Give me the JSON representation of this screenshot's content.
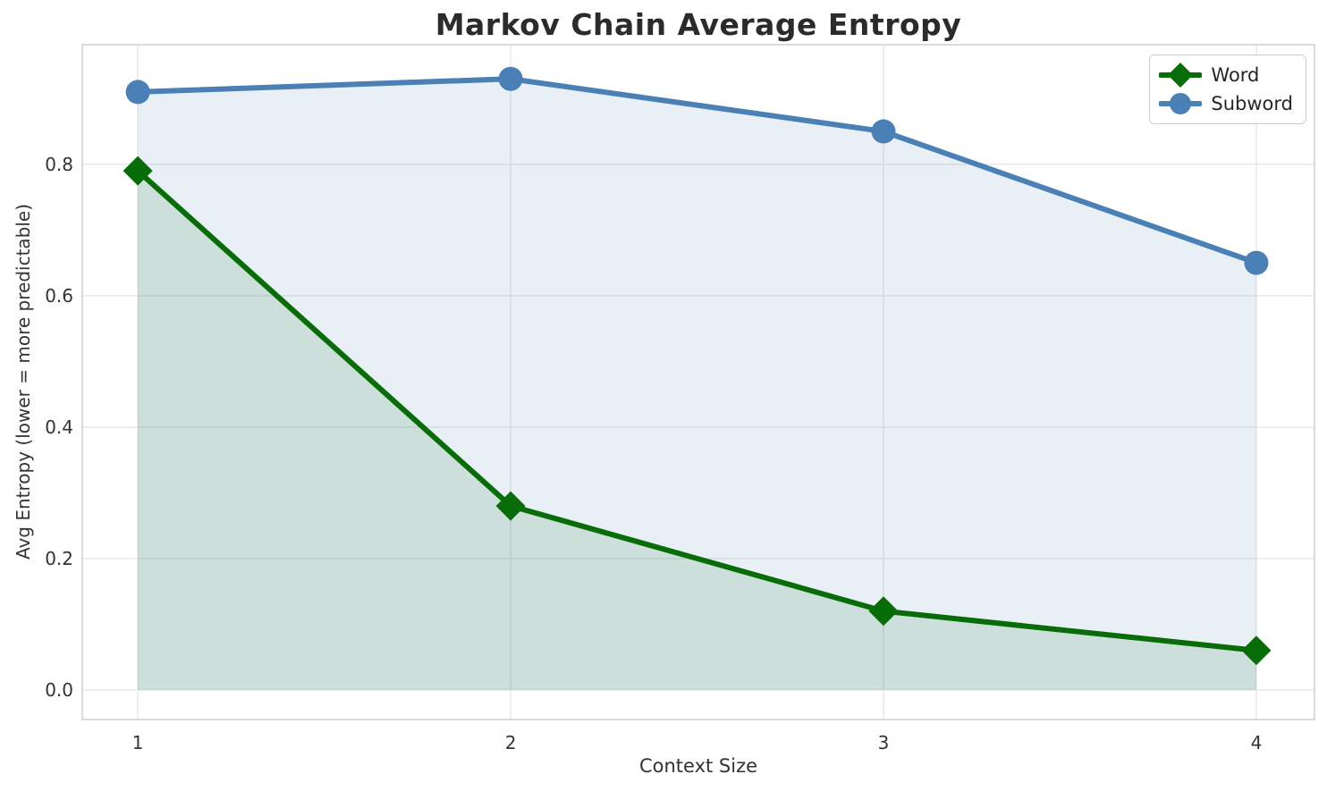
{
  "chart_data": {
    "type": "line",
    "title": "Markov Chain Average Entropy",
    "xlabel": "Context Size",
    "ylabel": "Avg Entropy (lower = more predictable)",
    "x": [
      1,
      2,
      3,
      4
    ],
    "series": [
      {
        "name": "Word",
        "values": [
          0.79,
          0.28,
          0.12,
          0.06
        ],
        "color": "#086d08",
        "marker": "diamond",
        "fill_to_zero": true,
        "fill_opacity": 0.12
      },
      {
        "name": "Subword",
        "values": [
          0.91,
          0.93,
          0.85,
          0.65
        ],
        "color": "#4a80b5",
        "marker": "circle",
        "fill_to_zero": true,
        "fill_opacity": 0.13
      }
    ],
    "xlim": [
      0.851,
      4.156
    ],
    "ylim": [
      -0.045,
      0.982
    ],
    "xticks": [
      1,
      2,
      3,
      4
    ],
    "xtick_labels": [
      "1",
      "2",
      "3",
      "4"
    ],
    "yticks": [
      0.0,
      0.2,
      0.4,
      0.6,
      0.8
    ],
    "ytick_labels": [
      "0.0",
      "0.2",
      "0.4",
      "0.6",
      "0.8"
    ],
    "grid": true,
    "grid_color": "#e8e8e8",
    "spine_color": "#cfcfcf",
    "tick_label_color": "#333333",
    "legend_position": "upper right",
    "background_color": "#ffffff"
  }
}
